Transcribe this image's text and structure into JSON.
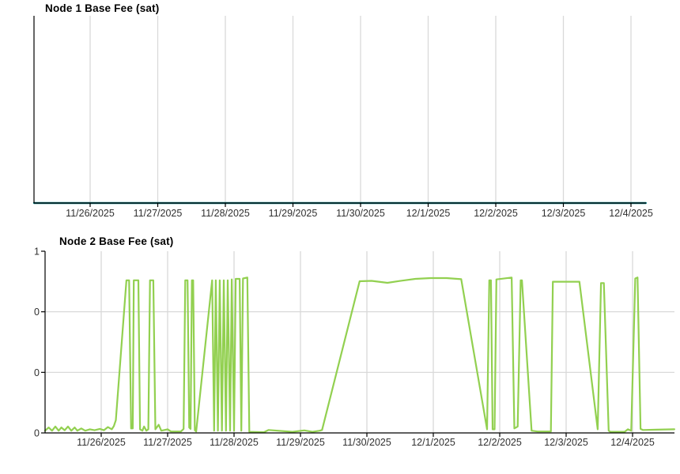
{
  "page": {
    "background": "#ffffff",
    "colors": {
      "grid": "#d9d9d9",
      "axis": "#000000",
      "tick_label": "#303030",
      "title": "#000000"
    }
  },
  "chart_data": [
    {
      "id": "node1",
      "type": "line",
      "title": "Node 1 Base Fee (sat)",
      "xlabel": "",
      "ylabel": "",
      "grid": true,
      "legend": "none",
      "x_tick_labels": [
        "11/26/2025",
        "11/27/2025",
        "11/28/2025",
        "11/29/2025",
        "11/30/2025",
        "12/1/2025",
        "12/2/2025",
        "12/3/2025",
        "12/4/2025"
      ],
      "x_tick_positions": [
        1,
        2,
        3,
        4,
        5,
        6,
        7,
        8,
        9
      ],
      "y_ticks": [],
      "xlim": [
        0.17,
        9.22
      ],
      "ylim": [
        0,
        1
      ],
      "series": [
        {
          "name": "Node 1 Base Fee",
          "color": "#0b8184",
          "width": 2.4,
          "points": [
            [
              0.17,
              0
            ],
            [
              9.22,
              0
            ]
          ]
        }
      ]
    },
    {
      "id": "node2",
      "type": "line",
      "title": "Node 2 Base Fee (sat)",
      "xlabel": "",
      "ylabel": "",
      "grid": true,
      "legend": "none",
      "x_tick_labels": [
        "11/26/2025",
        "11/27/2025",
        "11/28/2025",
        "11/29/2025",
        "11/30/2025",
        "12/1/2025",
        "12/2/2025",
        "12/3/2025",
        "12/4/2025"
      ],
      "x_tick_positions": [
        1,
        2,
        3,
        4,
        5,
        6,
        7,
        8,
        9
      ],
      "y_ticks": [
        {
          "value": 1,
          "label": "1"
        },
        {
          "value": 0.6667,
          "label": "0"
        },
        {
          "value": 0.3333,
          "label": "0"
        },
        {
          "value": 0,
          "label": "0"
        }
      ],
      "xlim": [
        0.155,
        9.63
      ],
      "ylim": [
        0,
        1
      ],
      "series": [
        {
          "name": "Node 2 Base Fee",
          "color": "#92d050",
          "width": 2.2,
          "points": [
            [
              0.155,
              0.012
            ],
            [
              0.21,
              0.03
            ],
            [
              0.26,
              0.012
            ],
            [
              0.31,
              0.035
            ],
            [
              0.36,
              0.012
            ],
            [
              0.4,
              0.03
            ],
            [
              0.45,
              0.015
            ],
            [
              0.5,
              0.035
            ],
            [
              0.55,
              0.012
            ],
            [
              0.6,
              0.03
            ],
            [
              0.64,
              0.012
            ],
            [
              0.7,
              0.025
            ],
            [
              0.76,
              0.012
            ],
            [
              0.83,
              0.02
            ],
            [
              0.9,
              0.015
            ],
            [
              0.98,
              0.022
            ],
            [
              1.04,
              0.015
            ],
            [
              1.1,
              0.032
            ],
            [
              1.16,
              0.02
            ],
            [
              1.19,
              0.038
            ],
            [
              1.22,
              0.07
            ],
            [
              1.38,
              0.84
            ],
            [
              1.42,
              0.84
            ],
            [
              1.45,
              0.025
            ],
            [
              1.475,
              0.025
            ],
            [
              1.49,
              0.84
            ],
            [
              1.56,
              0.84
            ],
            [
              1.585,
              0.02
            ],
            [
              1.62,
              0.012
            ],
            [
              1.645,
              0.035
            ],
            [
              1.68,
              0.012
            ],
            [
              1.71,
              0.02
            ],
            [
              1.735,
              0.84
            ],
            [
              1.785,
              0.84
            ],
            [
              1.815,
              0.02
            ],
            [
              1.865,
              0.045
            ],
            [
              1.905,
              0.012
            ],
            [
              2.0,
              0.02
            ],
            [
              2.05,
              0.008
            ],
            [
              2.2,
              0.008
            ],
            [
              2.24,
              0.022
            ],
            [
              2.265,
              0.84
            ],
            [
              2.3,
              0.84
            ],
            [
              2.325,
              0.03
            ],
            [
              2.345,
              0.022
            ],
            [
              2.365,
              0.84
            ],
            [
              2.385,
              0.84
            ],
            [
              2.41,
              0.015
            ],
            [
              2.43,
              0.008
            ],
            [
              2.67,
              0.84
            ],
            [
              2.7,
              0.012
            ],
            [
              2.725,
              0.84
            ],
            [
              2.757,
              0.012
            ],
            [
              2.785,
              0.84
            ],
            [
              2.818,
              0.012
            ],
            [
              2.845,
              0.84
            ],
            [
              2.878,
              0.012
            ],
            [
              2.905,
              0.84
            ],
            [
              2.94,
              0.012
            ],
            [
              2.965,
              0.845
            ],
            [
              3.0,
              0.012
            ],
            [
              3.025,
              0.848
            ],
            [
              3.085,
              0.848
            ],
            [
              3.11,
              0.012
            ],
            [
              3.135,
              0.85
            ],
            [
              3.2,
              0.855
            ],
            [
              3.23,
              0.006
            ],
            [
              3.45,
              0.004
            ],
            [
              3.52,
              0.016
            ],
            [
              3.88,
              0.006
            ],
            [
              4.06,
              0.014
            ],
            [
              4.18,
              0.006
            ],
            [
              4.29,
              0.012
            ],
            [
              4.325,
              0.016
            ],
            [
              4.89,
              0.835
            ],
            [
              5.07,
              0.837
            ],
            [
              5.31,
              0.826
            ],
            [
              5.49,
              0.836
            ],
            [
              5.73,
              0.848
            ],
            [
              5.96,
              0.852
            ],
            [
              6.2,
              0.852
            ],
            [
              6.42,
              0.846
            ],
            [
              6.81,
              0.02
            ],
            [
              6.843,
              0.84
            ],
            [
              6.868,
              0.84
            ],
            [
              6.893,
              0.02
            ],
            [
              6.923,
              0.02
            ],
            [
              6.95,
              0.845
            ],
            [
              7.18,
              0.855
            ],
            [
              7.22,
              0.025
            ],
            [
              7.27,
              0.035
            ],
            [
              7.315,
              0.84
            ],
            [
              7.335,
              0.84
            ],
            [
              7.48,
              0.012
            ],
            [
              7.57,
              0.008
            ],
            [
              7.77,
              0.008
            ],
            [
              7.8,
              0.832
            ],
            [
              8.2,
              0.832
            ],
            [
              8.475,
              0.02
            ],
            [
              8.525,
              0.825
            ],
            [
              8.568,
              0.825
            ],
            [
              8.64,
              0.012
            ],
            [
              8.668,
              0.006
            ],
            [
              8.88,
              0.006
            ],
            [
              8.93,
              0.02
            ],
            [
              8.98,
              0.012
            ],
            [
              9.04,
              0.85
            ],
            [
              9.075,
              0.855
            ],
            [
              9.12,
              0.022
            ],
            [
              9.155,
              0.016
            ],
            [
              9.36,
              0.018
            ],
            [
              9.63,
              0.02
            ]
          ]
        }
      ]
    }
  ]
}
